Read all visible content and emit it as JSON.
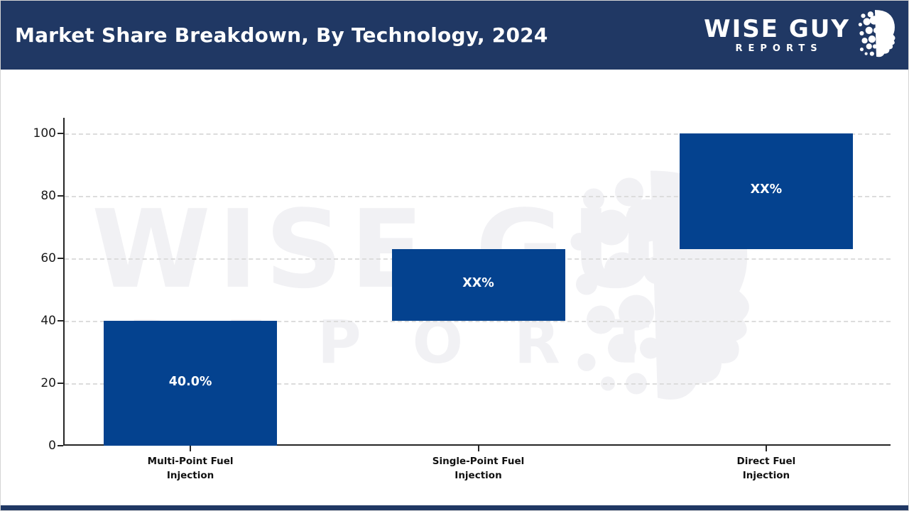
{
  "header": {
    "title": "Market Share Breakdown, By Technology, 2024",
    "bg_color": "#203864",
    "logo": {
      "line1": "WISE GUY",
      "line2": "REPORTS"
    }
  },
  "watermark": {
    "line1": "WISE GUY",
    "line2": "REPORTS",
    "color": "#f1f1f4"
  },
  "footer": {
    "bg_color": "#203864"
  },
  "chart_data": {
    "type": "bar",
    "variant": "waterfall",
    "title": "Market Share Breakdown, By Technology, 2024",
    "categories": [
      "Multi-Point Fuel Injection",
      "Single-Point Fuel Injection",
      "Direct Fuel Injection"
    ],
    "category_lines": [
      [
        "Multi-Point Fuel",
        "Injection"
      ],
      [
        "Single-Point Fuel",
        "Injection"
      ],
      [
        "Direct Fuel",
        "Injection"
      ]
    ],
    "bars": [
      {
        "category": "Multi-Point Fuel Injection",
        "start": 0,
        "end": 40,
        "label": "40.0%"
      },
      {
        "category": "Single-Point Fuel Injection",
        "start": 40,
        "end": 63,
        "label": "XX%"
      },
      {
        "category": "Direct Fuel Injection",
        "start": 63,
        "end": 100,
        "label": "XX%"
      }
    ],
    "bar_color": "#04428f",
    "bar_label_color": "#ffffff",
    "yticks": [
      0,
      20,
      40,
      60,
      80,
      100
    ],
    "ylim": [
      0,
      105
    ],
    "xlabel": "",
    "ylabel": "",
    "grid": "horizontal-dashed",
    "legend": "none"
  }
}
